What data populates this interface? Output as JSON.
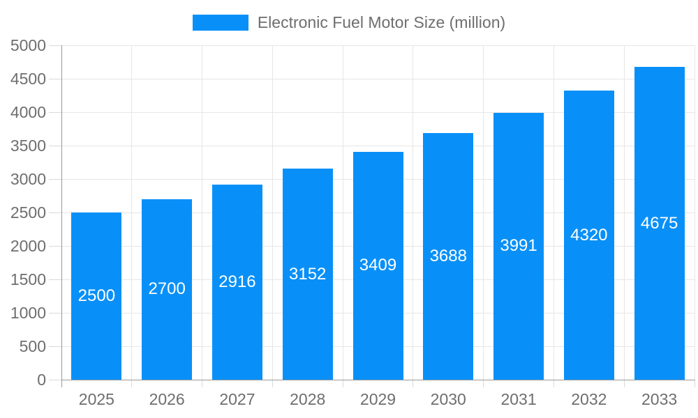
{
  "colors": {
    "bar": "#0990F8",
    "bar_label": "#FFFFFF",
    "axis_line": "#999999",
    "grid_line": "#E6E6E6",
    "tick_line": "#D9D9D9",
    "text": "#6E6E6E",
    "background": "#FFFFFF"
  },
  "chart_data": {
    "type": "bar",
    "title": "Electronic Fuel Motor Size (million)",
    "categories": [
      "2025",
      "2026",
      "2027",
      "2028",
      "2029",
      "2030",
      "2031",
      "2032",
      "2033"
    ],
    "series": [
      {
        "name": "Electronic Fuel Motor Size (million)",
        "values": [
          2500,
          2700,
          2916,
          3152,
          3409,
          3688,
          3991,
          4320,
          4675
        ]
      }
    ],
    "xlabel": "",
    "ylabel": "",
    "ylim": [
      0,
      5000
    ],
    "ytick_step": 500,
    "yticks": [
      0,
      500,
      1000,
      1500,
      2000,
      2500,
      3000,
      3500,
      4000,
      4500,
      5000
    ],
    "grid": true,
    "legend_position": "top",
    "value_labels_position": "inside-center"
  }
}
